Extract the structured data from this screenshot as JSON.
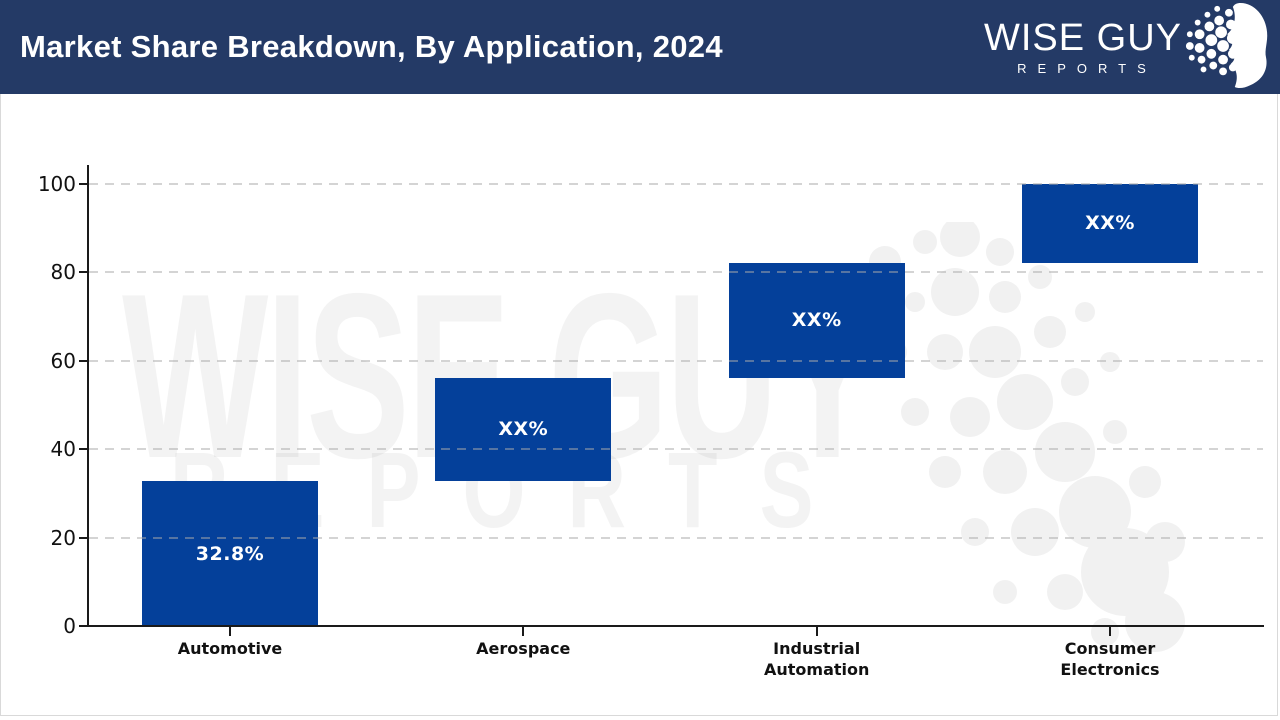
{
  "header": {
    "title": "Market Share Breakdown, By Application, 2024",
    "logo": {
      "name_top": "WISE GUY",
      "name_bottom": "REPORTS"
    }
  },
  "watermark": {
    "text_top": "WISE GUY",
    "text_bottom": "REPORTS"
  },
  "chart_data": {
    "type": "bar",
    "subtype": "waterfall",
    "title": "Market Share Breakdown, By Application, 2024",
    "categories": [
      "Automotive",
      "Aerospace",
      "Industrial Automation",
      "Consumer Electronics"
    ],
    "bars": [
      {
        "category": "Automotive",
        "start": 0,
        "end": 32.8,
        "label": "32.8%"
      },
      {
        "category": "Aerospace",
        "start": 32.8,
        "end": 56.2,
        "label": "XX%"
      },
      {
        "category": "Industrial Automation",
        "start": 56.2,
        "end": 82.2,
        "label": "XX%"
      },
      {
        "category": "Consumer Electronics",
        "start": 82.2,
        "end": 100,
        "label": "XX%"
      }
    ],
    "ylim": [
      0,
      100
    ],
    "yticks": [
      0,
      20,
      40,
      60,
      80,
      100
    ],
    "xlabel": "",
    "ylabel": "",
    "bar_color": "#04409A",
    "grid": "horizontal-dashed",
    "legend": "none"
  }
}
